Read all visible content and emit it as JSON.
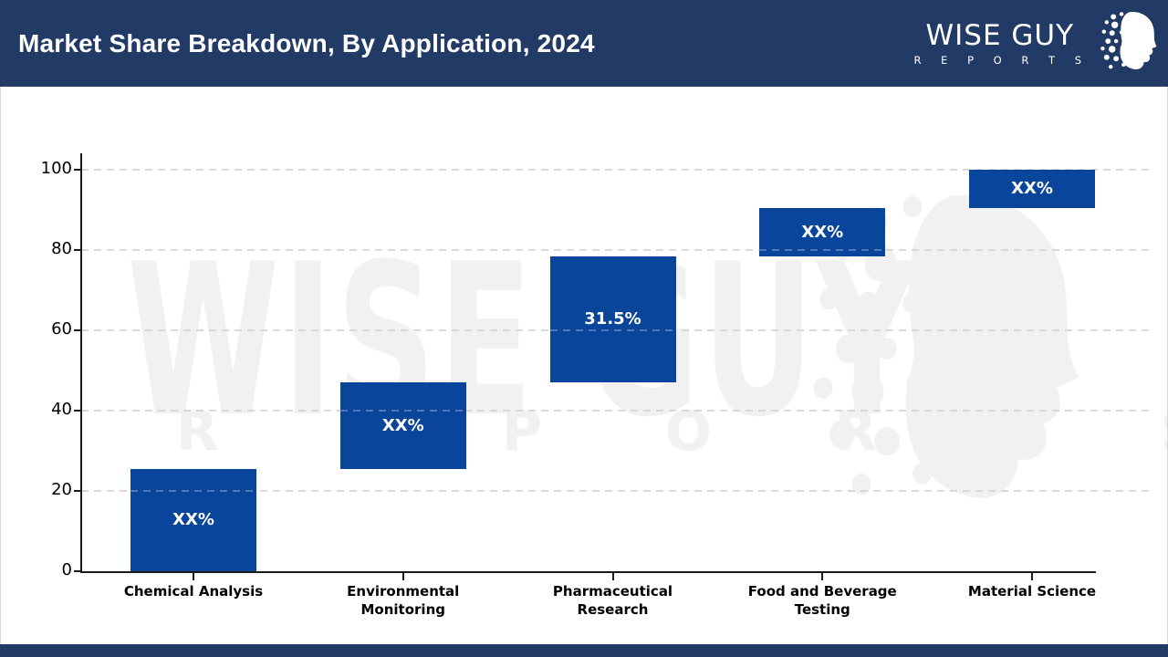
{
  "header": {
    "title": "Market Share Breakdown, By Application, 2024",
    "logo": {
      "line1": "WISE GUY",
      "line2": "R E P O R T S"
    }
  },
  "watermark": {
    "line1": "WISE GUY",
    "line2": "R E P O R T S"
  },
  "colors": {
    "navy": "#223A66",
    "bar_blue": "#09459B",
    "gridline": "#d8d8d8",
    "watermark_gray": "#f1f1f1"
  },
  "chart_data": {
    "type": "bar",
    "subtype": "waterfall",
    "title": "Market Share Breakdown, By Application, 2024",
    "categories": [
      "Chemical Analysis",
      "Environmental\nMonitoring",
      "Pharmaceutical\nResearch",
      "Food and Beverage\nTesting",
      "Material Science"
    ],
    "segments": [
      {
        "category": "Chemical Analysis",
        "start": 0,
        "end": 25.5,
        "value": 25.5,
        "label": "XX%"
      },
      {
        "category": "Environmental Monitoring",
        "start": 25.5,
        "end": 47,
        "value": 21.5,
        "label": "XX%"
      },
      {
        "category": "Pharmaceutical Research",
        "start": 47,
        "end": 78.5,
        "value": 31.5,
        "label": "31.5%"
      },
      {
        "category": "Food and Beverage Testing",
        "start": 78.5,
        "end": 90.5,
        "value": 12,
        "label": "XX%"
      },
      {
        "category": "Material Science",
        "start": 90.5,
        "end": 100,
        "value": 9.5,
        "label": "XX%"
      }
    ],
    "yticks": [
      0,
      20,
      40,
      60,
      80,
      100
    ],
    "ylim": [
      0,
      104.5
    ],
    "grid": "dashed-horizontal",
    "legend": "none",
    "bar_color": "#09459B"
  }
}
